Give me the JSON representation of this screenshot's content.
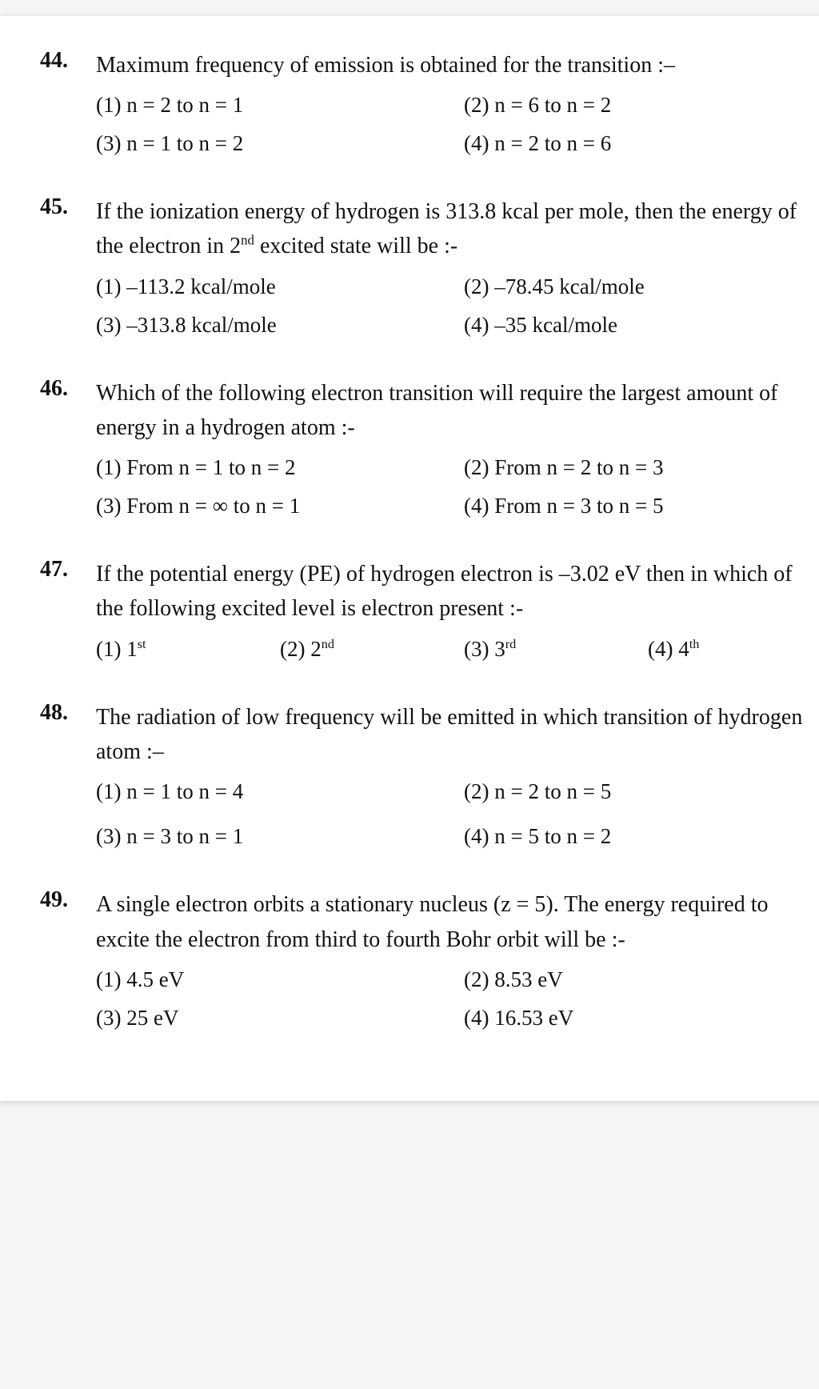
{
  "questions": [
    {
      "num": "44.",
      "stem": "Maximum frequency of emission is obtained for the transition :–",
      "options": [
        "(1) n = 2 to n = 1",
        "(2) n = 6 to n = 2",
        "(3) n = 1 to n = 2",
        "(4) n = 2 to n = 6"
      ]
    },
    {
      "num": "45.",
      "stem_parts": [
        "If the ionization energy of hydrogen is 313.8 kcal per mole, then the energy of the electron in 2",
        "nd",
        " excited state will be :-"
      ],
      "options": [
        "(1) –113.2 kcal/mole",
        "(2) –78.45 kcal/mole",
        "(3) –313.8 kcal/mole",
        "(4) –35 kcal/mole"
      ]
    },
    {
      "num": "46.",
      "stem": "Which of the following electron transition will require the largest amount of energy in a hydrogen atom :-",
      "options": [
        "(1) From n = 1 to n = 2",
        "(2) From n = 2 to n = 3",
        "(3) From n = ∞ to n = 1",
        "(4) From n = 3 to n = 5"
      ]
    },
    {
      "num": "47.",
      "stem": "If the potential energy (PE) of hydrogen electron is –3.02 eV then in which of the following excited level is electron present :-",
      "options_sup": [
        {
          "pre": "(1) 1",
          "sup": "st"
        },
        {
          "pre": "(2) 2",
          "sup": "nd"
        },
        {
          "pre": "(3) 3",
          "sup": "rd"
        },
        {
          "pre": "(4) 4",
          "sup": "th"
        }
      ]
    },
    {
      "num": "48.",
      "stem": "The radiation of low frequency will be emitted in which transition of hydrogen atom :–",
      "options": [
        "(1) n = 1 to n = 4",
        "(2) n = 2 to n = 5",
        "(3) n = 3 to n = 1",
        "(4) n = 5 to n = 2"
      ]
    },
    {
      "num": "49.",
      "stem": "A single electron orbits a stationary nucleus (z = 5). The energy required to excite the electron from third to fourth Bohr orbit will be :-",
      "options": [
        "(1) 4.5 eV",
        "(2) 8.53 eV",
        "(3) 25 eV",
        "(4) 16.53 eV"
      ]
    }
  ]
}
